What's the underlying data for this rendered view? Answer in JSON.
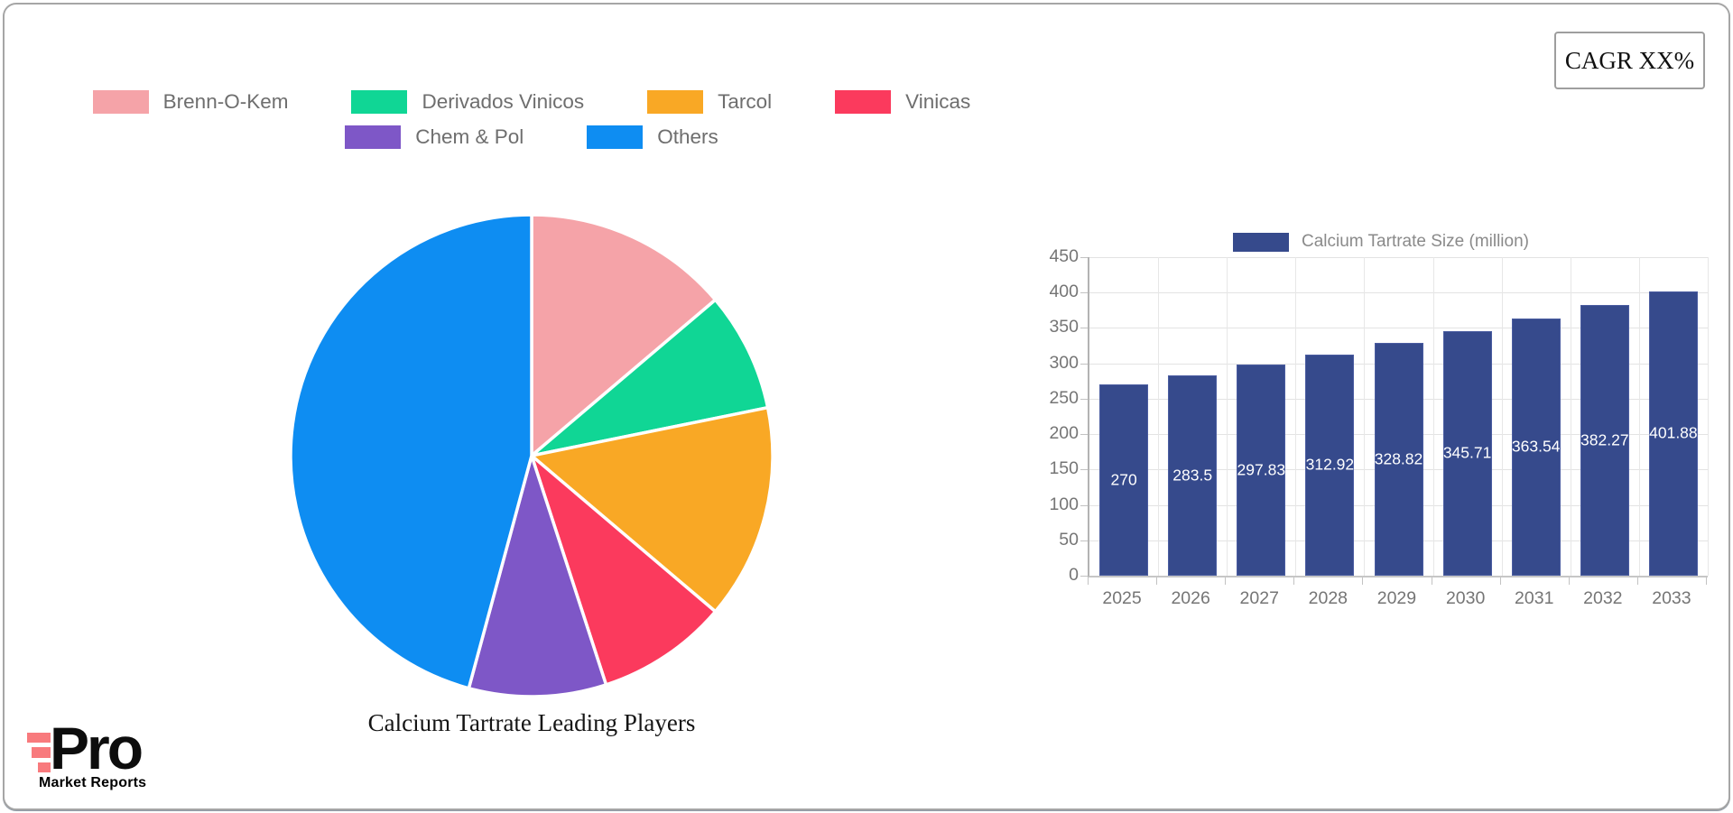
{
  "header": {
    "cagr_badge": "CAGR XX%"
  },
  "logo": {
    "brand": "Pro",
    "subtitle": "Market Reports",
    "accent_color": "#f87a7d",
    "text_color": "#0d0d0d"
  },
  "chart_data": [
    {
      "type": "pie",
      "title": "Calcium Tartrate Leading Players",
      "labels": [
        "Brenn-O-Kem",
        "Derivados Vinicos",
        "Tarcol",
        "Vinicas",
        "Chem & Pol",
        "Others"
      ],
      "values_pct": [
        13.8,
        8.0,
        14.4,
        8.8,
        9.2,
        45.8
      ],
      "colors": [
        "#f5a3a8",
        "#10d695",
        "#f9a825",
        "#fb3a5d",
        "#7e57c7",
        "#0e8df2"
      ],
      "slice_border_color": "#ffffff",
      "start_angle": "top",
      "direction": "clockwise",
      "legend_position": "top",
      "legend_rows": [
        4,
        2
      ],
      "legend_text_color": "#6e6e6e"
    },
    {
      "type": "bar",
      "legend_label": "Calcium Tartrate Size (million)",
      "categories": [
        "2025",
        "2026",
        "2027",
        "2028",
        "2029",
        "2030",
        "2031",
        "2032",
        "2033"
      ],
      "values": [
        270,
        283.5,
        297.83,
        312.92,
        328.82,
        345.71,
        363.54,
        382.27,
        401.88
      ],
      "bar_color": "#364a8c",
      "value_label_color": "#ffffff",
      "axis_text_color": "#757575",
      "grid_color": "#e3e3e3",
      "ylim": [
        0,
        450
      ],
      "ytick_step": 50,
      "grid": true,
      "legend_position": "top"
    }
  ]
}
